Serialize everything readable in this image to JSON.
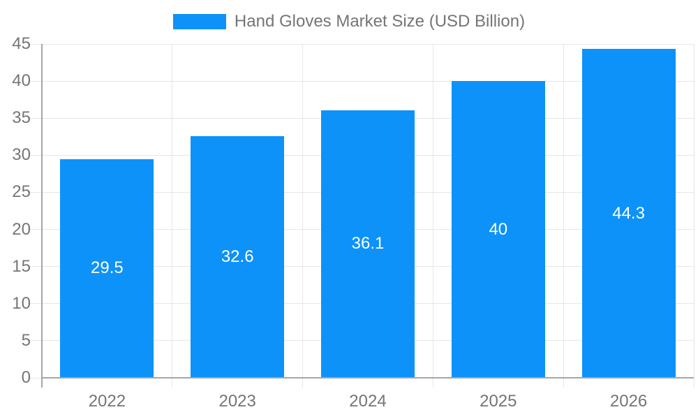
{
  "chart_data": {
    "type": "bar",
    "title": "Hand Gloves Market Size (USD Billion)",
    "legend": {
      "position": "top",
      "series_label": "Hand Gloves Market Size (USD Billion)"
    },
    "categories": [
      "2022",
      "2023",
      "2024",
      "2025",
      "2026"
    ],
    "series": [
      {
        "name": "Hand Gloves Market Size (USD Billion)",
        "values": [
          29.5,
          32.6,
          36.1,
          40,
          44.3
        ],
        "value_labels": [
          "29.5",
          "32.6",
          "36.1",
          "40",
          "44.3"
        ]
      }
    ],
    "xlabel": "",
    "ylabel": "",
    "ylim": [
      0,
      45
    ],
    "yticks": [
      0,
      5,
      10,
      15,
      20,
      25,
      30,
      35,
      40,
      45
    ],
    "ytick_labels": [
      "0",
      "5",
      "10",
      "15",
      "20",
      "25",
      "30",
      "35",
      "40",
      "45"
    ],
    "grid": "on",
    "bar_label_position": "inside-center"
  },
  "colors": {
    "bar": "#0d92f9",
    "bar_label": "#ffffff",
    "axis_text": "#757575",
    "axis_line": "#a6a6a6",
    "gridline": "#e6e6e6",
    "background": "#ffffff"
  }
}
